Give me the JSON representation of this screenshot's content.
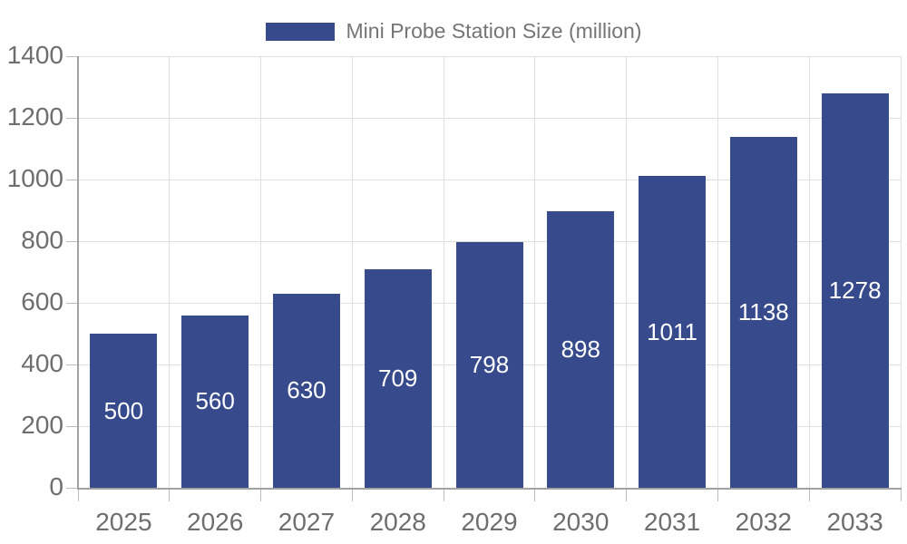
{
  "legend": {
    "label": "Mini Probe Station Size (million)"
  },
  "chart_data": {
    "type": "bar",
    "title": "Mini Probe Station Size (million)",
    "categories": [
      "2025",
      "2026",
      "2027",
      "2028",
      "2029",
      "2030",
      "2031",
      "2032",
      "2033"
    ],
    "values": [
      500,
      560,
      630,
      709,
      798,
      898,
      1011,
      1138,
      1278
    ],
    "series": [
      {
        "name": "Mini Probe Station Size (million)",
        "values": [
          500,
          560,
          630,
          709,
          798,
          898,
          1011,
          1138,
          1278
        ]
      }
    ],
    "xlabel": "",
    "ylabel": "",
    "ylim": [
      0,
      1400
    ],
    "yticks": [
      0,
      200,
      400,
      600,
      800,
      1000,
      1200,
      1400
    ],
    "grid": true,
    "legend_position": "top-center",
    "bar_labels_inside": true,
    "colors": {
      "bar": "#374B8C",
      "bar_label": "#FFFFFF",
      "axis_text": "#6E6E6E",
      "legend_text": "#757575",
      "grid_line": "#DFDFDF",
      "axis_line": "#A2A2A2",
      "tick": "#BDBDBD"
    }
  }
}
